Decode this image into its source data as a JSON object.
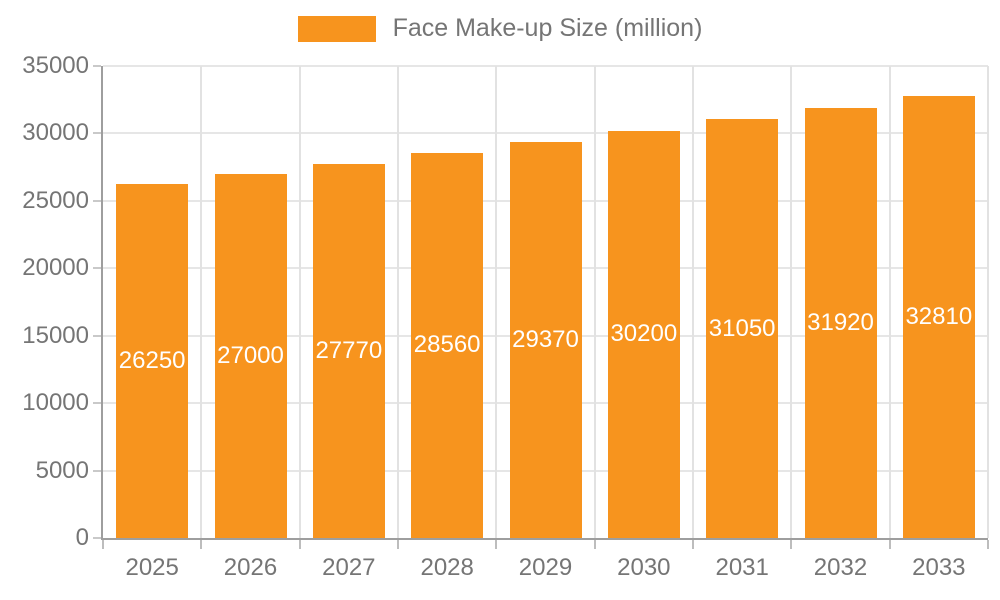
{
  "legend": {
    "label": "Face Make-up Size (million)"
  },
  "chart_data": {
    "type": "bar",
    "title": "Face Make-up Size (million)",
    "series_name": "Face Make-up Size (million)",
    "categories": [
      "2025",
      "2026",
      "2027",
      "2028",
      "2029",
      "2030",
      "2031",
      "2032",
      "2033"
    ],
    "values": [
      26250,
      27000,
      27770,
      28560,
      29370,
      30200,
      31050,
      31920,
      32810
    ],
    "bar_labels": [
      "26250",
      "27000",
      "27770",
      "28560",
      "29370",
      "30200",
      "31050",
      "31920",
      "32810"
    ],
    "xlabel": "",
    "ylabel": "",
    "ylim": [
      0,
      35000
    ],
    "yticks": [
      0,
      5000,
      10000,
      15000,
      20000,
      25000,
      30000,
      35000
    ],
    "ytick_labels": [
      "0",
      "5000",
      "10000",
      "15000",
      "20000",
      "25000",
      "30000",
      "35000"
    ],
    "grid": true,
    "legend_position": "top",
    "colors": {
      "bar": "#F7941E",
      "bar_label_text": "#FFFFFF",
      "axis_text": "#757575",
      "axis_line": "#9E9E9E",
      "gridline": "#E4E4E4",
      "background": "#FFFFFF"
    }
  }
}
